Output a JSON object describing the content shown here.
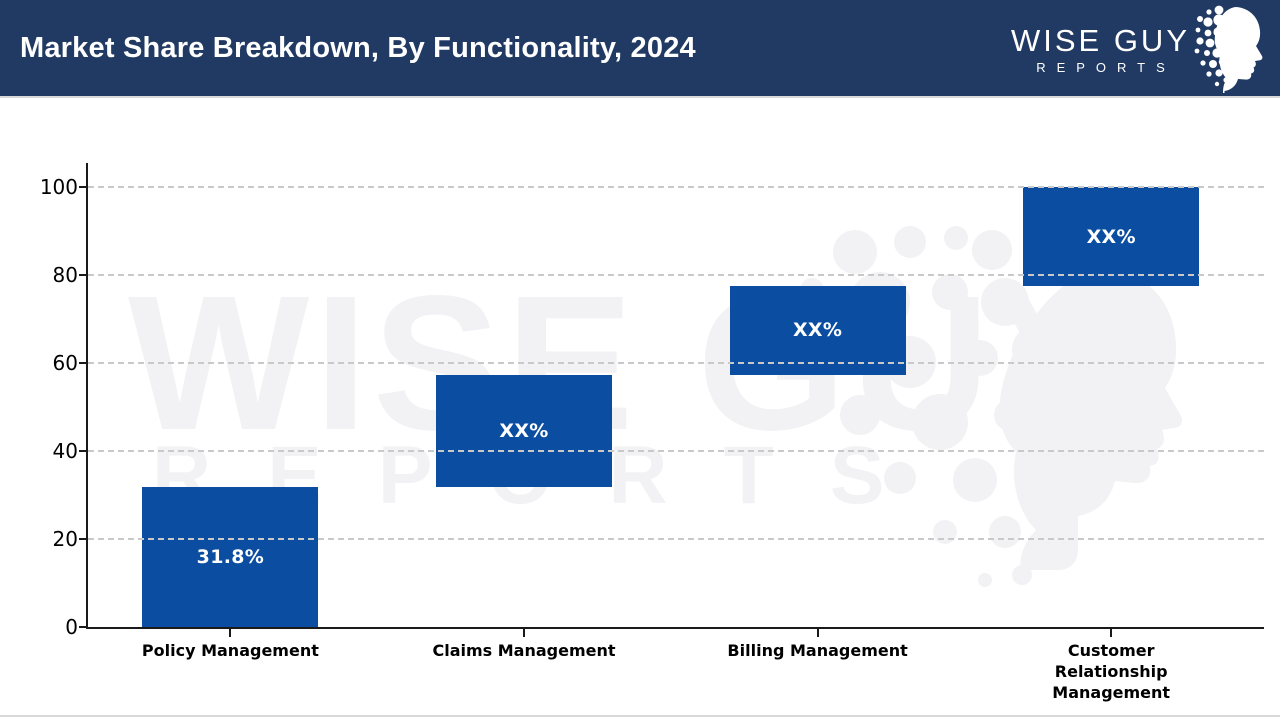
{
  "header": {
    "logo": {
      "line1": "WISE GUY",
      "line2": "REPORTS"
    }
  },
  "watermark": {
    "line1": "WISE GUY",
    "line2": "REPORTS"
  },
  "colors": {
    "header_bg": "#213A63",
    "bar": "#0B4DA1",
    "bar_label": "#FFFFFF",
    "watermark": "#F2F2F5",
    "gridline": "#C9C9C9"
  },
  "chart_data": {
    "type": "bar",
    "subtype": "waterfall",
    "title": "Market Share Breakdown, By Functionality, 2024",
    "categories": [
      "Policy Management",
      "Claims Management",
      "Billing Management",
      "Customer\nRelationship\nManagement"
    ],
    "segments": [
      {
        "category": "Policy Management",
        "start": 0,
        "end": 31.8,
        "label": "31.8%"
      },
      {
        "category": "Claims Management",
        "start": 31.8,
        "end": 57.3,
        "label": "XX%"
      },
      {
        "category": "Billing Management",
        "start": 57.3,
        "end": 77.5,
        "label": "XX%"
      },
      {
        "category": "Customer Relationship Management",
        "start": 77.5,
        "end": 100,
        "label": "XX%"
      }
    ],
    "xlabel": "",
    "ylabel": "",
    "ylim": [
      0,
      100
    ],
    "yticks": [
      0,
      20,
      40,
      60,
      80,
      100
    ],
    "grid": "horizontal dashed, drawn above bars",
    "legend": "none"
  }
}
